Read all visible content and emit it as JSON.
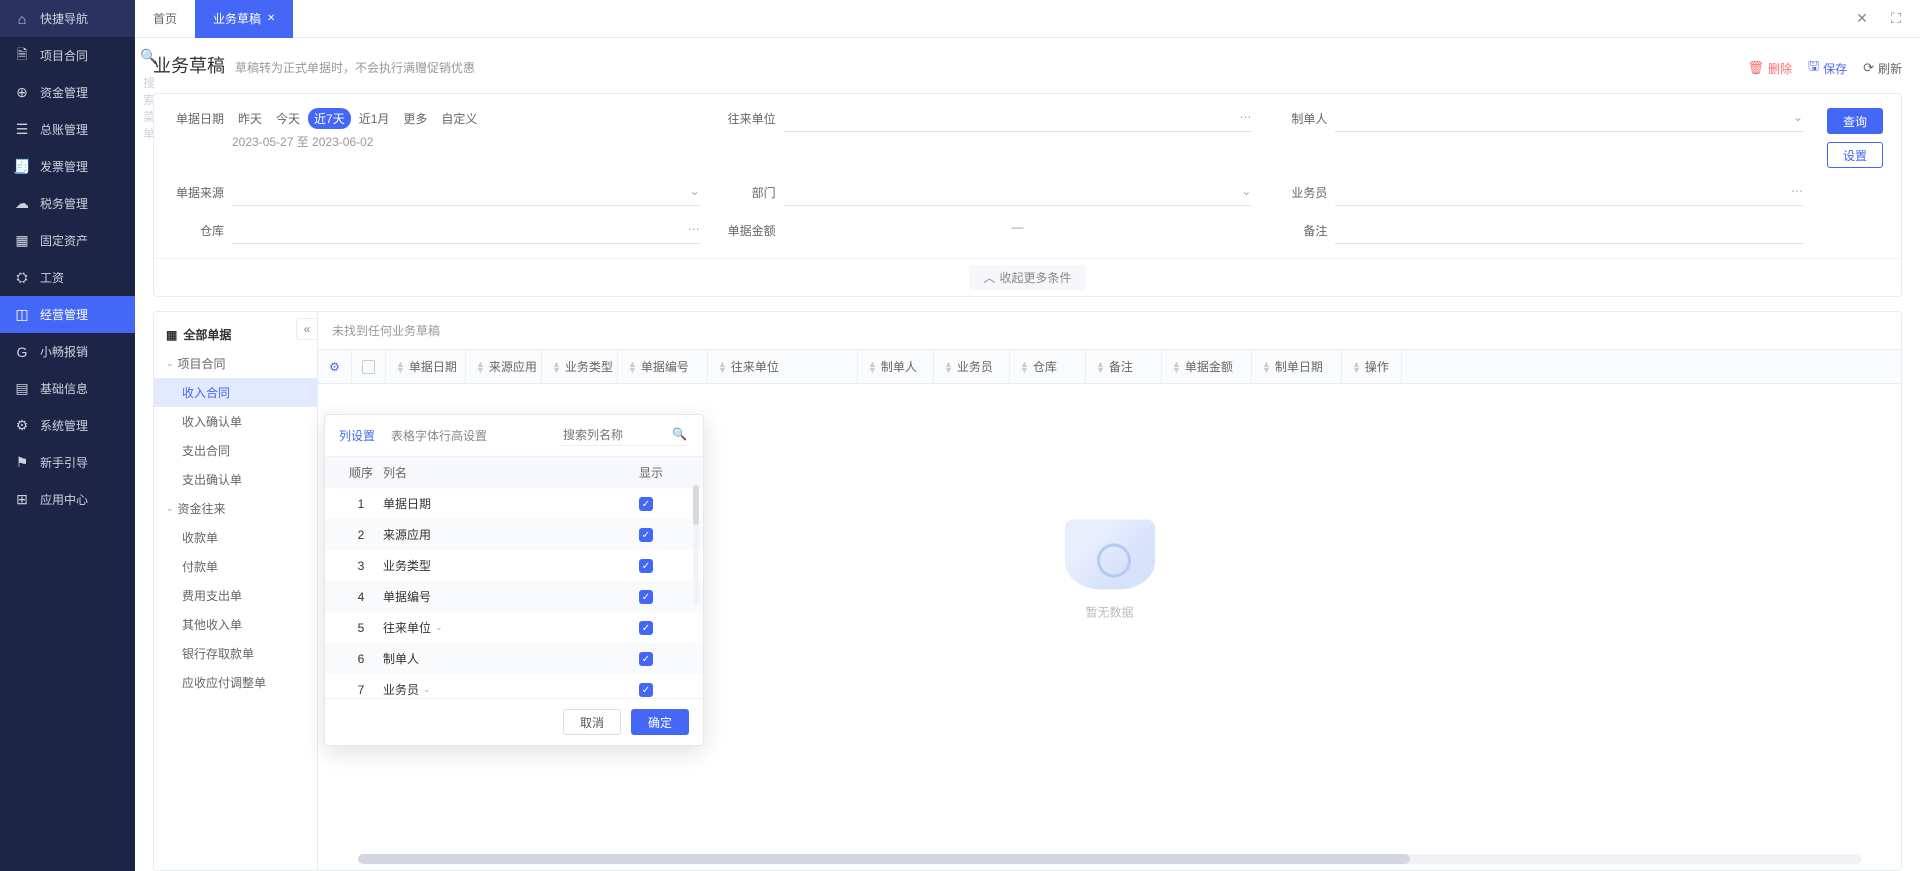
{
  "sidebar": {
    "search": "搜索菜单",
    "items": [
      {
        "icon": "⌂",
        "label": "快捷导航"
      },
      {
        "icon": "🗎",
        "label": "项目合同"
      },
      {
        "icon": "⊕",
        "label": "资金管理"
      },
      {
        "icon": "☰",
        "label": "总账管理"
      },
      {
        "icon": "🧾",
        "label": "发票管理"
      },
      {
        "icon": "☁",
        "label": "税务管理"
      },
      {
        "icon": "▦",
        "label": "固定资产"
      },
      {
        "icon": "⛭",
        "label": "工资"
      },
      {
        "icon": "◫",
        "label": "经营管理",
        "active": true
      },
      {
        "icon": "G",
        "label": "小畅报销"
      },
      {
        "icon": "▤",
        "label": "基础信息"
      },
      {
        "icon": "⚙",
        "label": "系统管理"
      },
      {
        "icon": "⚑",
        "label": "新手引导"
      },
      {
        "icon": "⊞",
        "label": "应用中心"
      }
    ]
  },
  "tabs": {
    "home": "首页",
    "active": "业务草稿"
  },
  "header": {
    "title": "业务草稿",
    "subtitle": "草稿转为正式单据时，不会执行满赠促销优惠",
    "actions": {
      "delete": "删除",
      "save": "保存",
      "refresh": "刷新"
    }
  },
  "filters": {
    "date": {
      "label": "单据日期",
      "chips": [
        "昨天",
        "今天",
        "近7天",
        "近1月",
        "更多",
        "自定义"
      ],
      "active": "近7天",
      "range": "2023-05-27 至 2023-06-02"
    },
    "partner": {
      "label": "往来单位"
    },
    "creator": {
      "label": "制单人"
    },
    "source": {
      "label": "单据来源"
    },
    "dept": {
      "label": "部门"
    },
    "clerk": {
      "label": "业务员"
    },
    "warehouse": {
      "label": "仓库"
    },
    "amount": {
      "label": "单据金额"
    },
    "remark": {
      "label": "备注"
    },
    "btn_query": "查询",
    "btn_setting": "设置",
    "collapse": "收起更多条件"
  },
  "tree": {
    "title": "全部单据",
    "groups": [
      {
        "label": "项目合同",
        "leaves": [
          "收入合同",
          "收入确认单",
          "支出合同",
          "支出确认单"
        ]
      },
      {
        "label": "资金往来",
        "leaves": [
          "收款单",
          "付款单",
          "费用支出单",
          "其他收入单",
          "银行存取款单",
          "应收应付调整单"
        ]
      }
    ],
    "active_leaf": "收入合同"
  },
  "table": {
    "empty_msg": "未找到任何业务草稿",
    "columns": [
      "单据日期",
      "来源应用",
      "业务类型",
      "单据编号",
      "往来单位",
      "制单人",
      "业务员",
      "仓库",
      "备注",
      "单据金额",
      "制单日期",
      "操作"
    ],
    "no_data": "暂无数据"
  },
  "popover": {
    "tab1": "列设置",
    "tab2": "表格字体行高设置",
    "search_ph": "搜索列名称",
    "head": {
      "order": "顺序",
      "name": "列名",
      "show": "显示"
    },
    "rows": [
      {
        "order": "1",
        "name": "单据日期",
        "expand": false
      },
      {
        "order": "2",
        "name": "来源应用",
        "expand": false
      },
      {
        "order": "3",
        "name": "业务类型",
        "expand": false
      },
      {
        "order": "4",
        "name": "单据编号",
        "expand": false
      },
      {
        "order": "5",
        "name": "往来单位",
        "expand": true
      },
      {
        "order": "6",
        "name": "制单人",
        "expand": false
      },
      {
        "order": "7",
        "name": "业务员",
        "expand": true
      }
    ],
    "cancel": "取消",
    "ok": "确定"
  }
}
